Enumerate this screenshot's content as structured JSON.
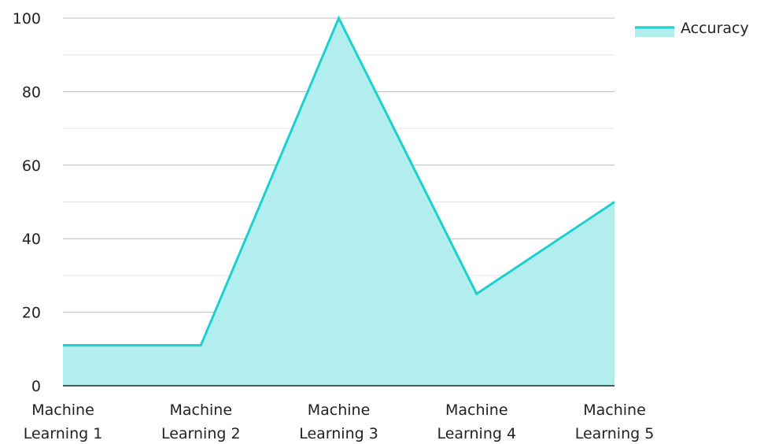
{
  "chart_data": {
    "type": "area",
    "categories": [
      "Machine Learning 1",
      "Machine Learning 2",
      "Machine Learning 3",
      "Machine Learning 4",
      "Machine Learning 5"
    ],
    "category_lines": [
      [
        "Machine",
        "Learning 1"
      ],
      [
        "Machine",
        "Learning 2"
      ],
      [
        "Machine",
        "Learning 3"
      ],
      [
        "Machine",
        "Learning 4"
      ],
      [
        "Machine",
        "Learning 5"
      ]
    ],
    "series": [
      {
        "name": "Accuracy",
        "values": [
          11,
          11,
          100,
          25,
          50
        ]
      }
    ],
    "ylim": [
      0,
      100
    ],
    "yticks": [
      0,
      20,
      40,
      60,
      80,
      100
    ],
    "y_minor_step": 10,
    "grid": true,
    "legend_position": "top-right",
    "colors": {
      "line": "#1FCFCF",
      "fill": "#B3EEEE",
      "grid": "#BDBDBD",
      "minor_grid": "#E3E3E3",
      "axis": "#222222"
    }
  }
}
